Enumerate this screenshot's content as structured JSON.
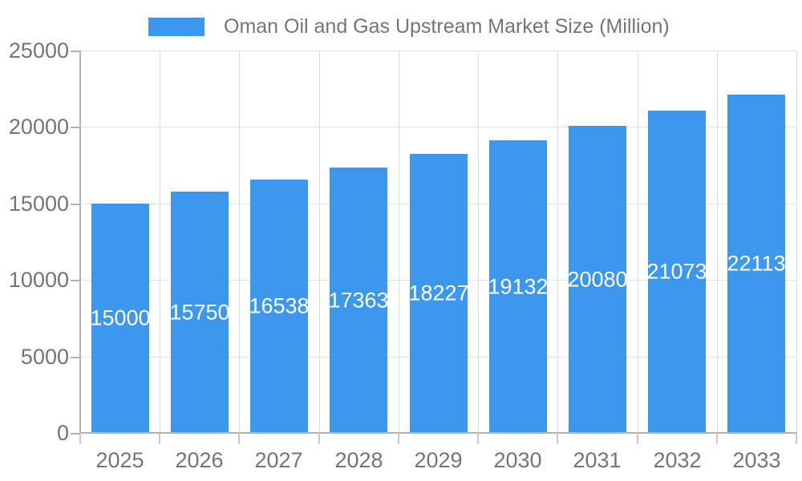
{
  "chart_data": {
    "type": "bar",
    "title": "Oman Oil and Gas Upstream Market Size (Million)",
    "categories": [
      "2025",
      "2026",
      "2027",
      "2028",
      "2029",
      "2030",
      "2031",
      "2032",
      "2033"
    ],
    "values": [
      15000,
      15750,
      16538,
      17363,
      18227,
      19132,
      20080,
      21073,
      22113
    ],
    "value_labels": [
      "15000",
      "15750",
      "16538",
      "17363",
      "18227",
      "19132",
      "20080",
      "21073",
      "22113"
    ],
    "xlabel": "",
    "ylabel": "",
    "ylim": [
      0,
      25000
    ],
    "ytick_step": 5000,
    "yticks": [
      0,
      5000,
      10000,
      15000,
      20000,
      25000
    ],
    "grid": true,
    "legend_position": "top-center",
    "legend_entries": [
      "Oman Oil and Gas Upstream Market Size (Million)"
    ]
  },
  "colors": {
    "bar": "#3B98EC",
    "bar_value_text": "#FFFFFF",
    "axis_text": "#757575",
    "axis_line": "#B2B2B2",
    "gridline": "#E2E2E2",
    "background": "#FFFFFF"
  }
}
